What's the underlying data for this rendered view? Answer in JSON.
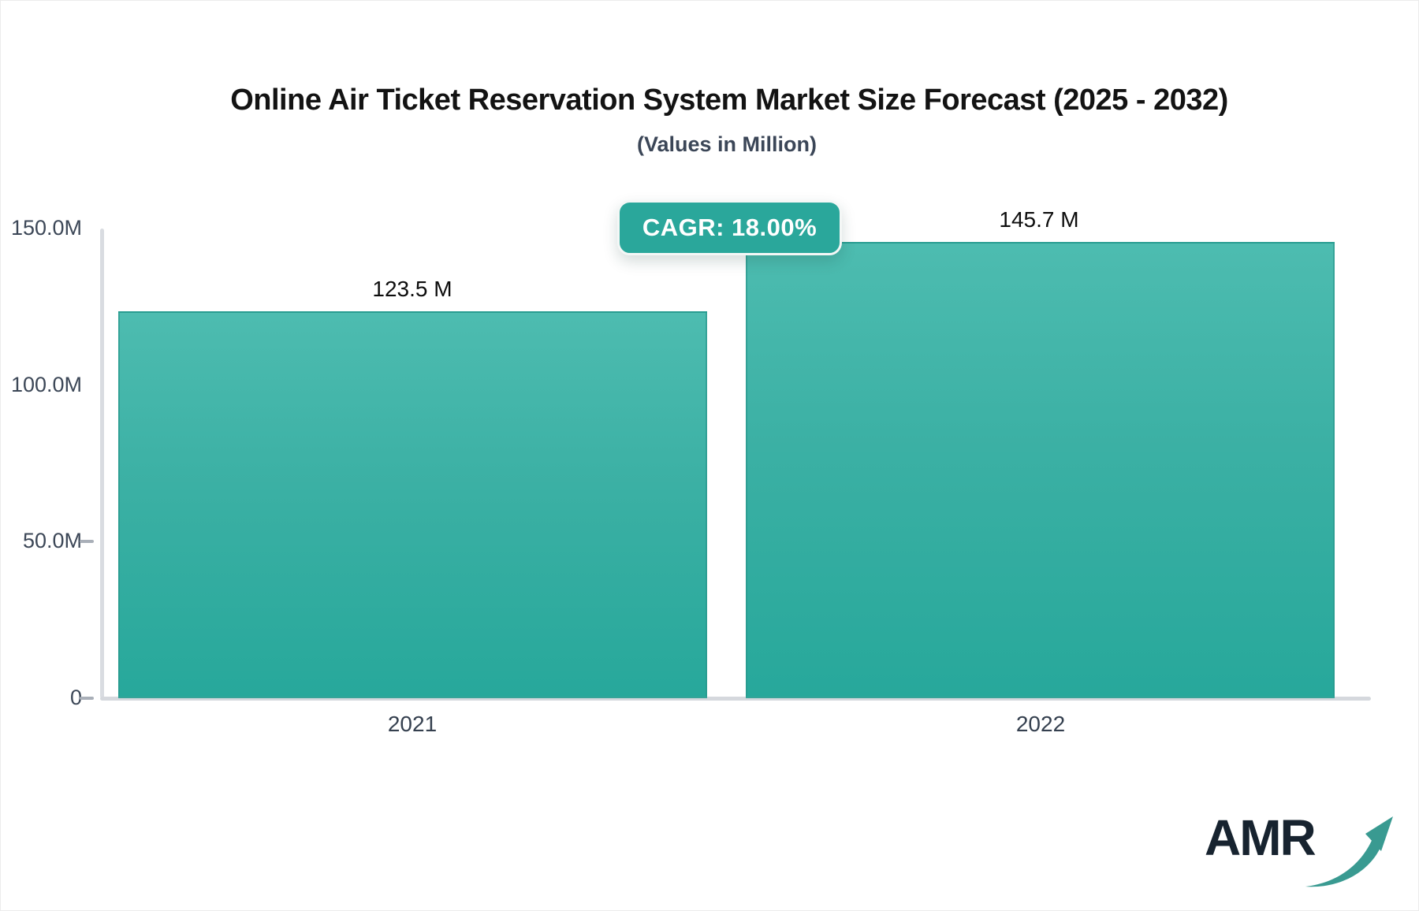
{
  "chart_data": {
    "type": "bar",
    "title": "Online Air Ticket Reservation System Market Size Forecast (2025 - 2032)",
    "subtitle": "(Values in Million)",
    "categories": [
      "2021",
      "2022"
    ],
    "values": [
      123.5,
      145.7
    ],
    "value_labels": [
      "123.5 M",
      "145.7 M"
    ],
    "unit": "Million",
    "ylim": [
      0,
      150
    ],
    "ytick_labels": [
      "150.0M",
      "100.0M",
      "50.0M",
      "0"
    ],
    "grid": false,
    "legend": "none",
    "annotation": "CAGR: 18.00%",
    "colors": {
      "bar_gradient_top": "#4dbcb0",
      "bar_gradient_bottom": "#27a89b",
      "bar_edge": "#29968c",
      "badge_background": "#2aa79b",
      "badge_text": "#ffffff",
      "axis_line": "#d9dce1",
      "tick_text": "#3c4757",
      "title_text": "#131313"
    }
  },
  "branding": {
    "logo_text": "AMR",
    "logo_icon": "growth-arrow-icon",
    "logo_color": "#17232f",
    "arrow_color": "#399a91"
  }
}
